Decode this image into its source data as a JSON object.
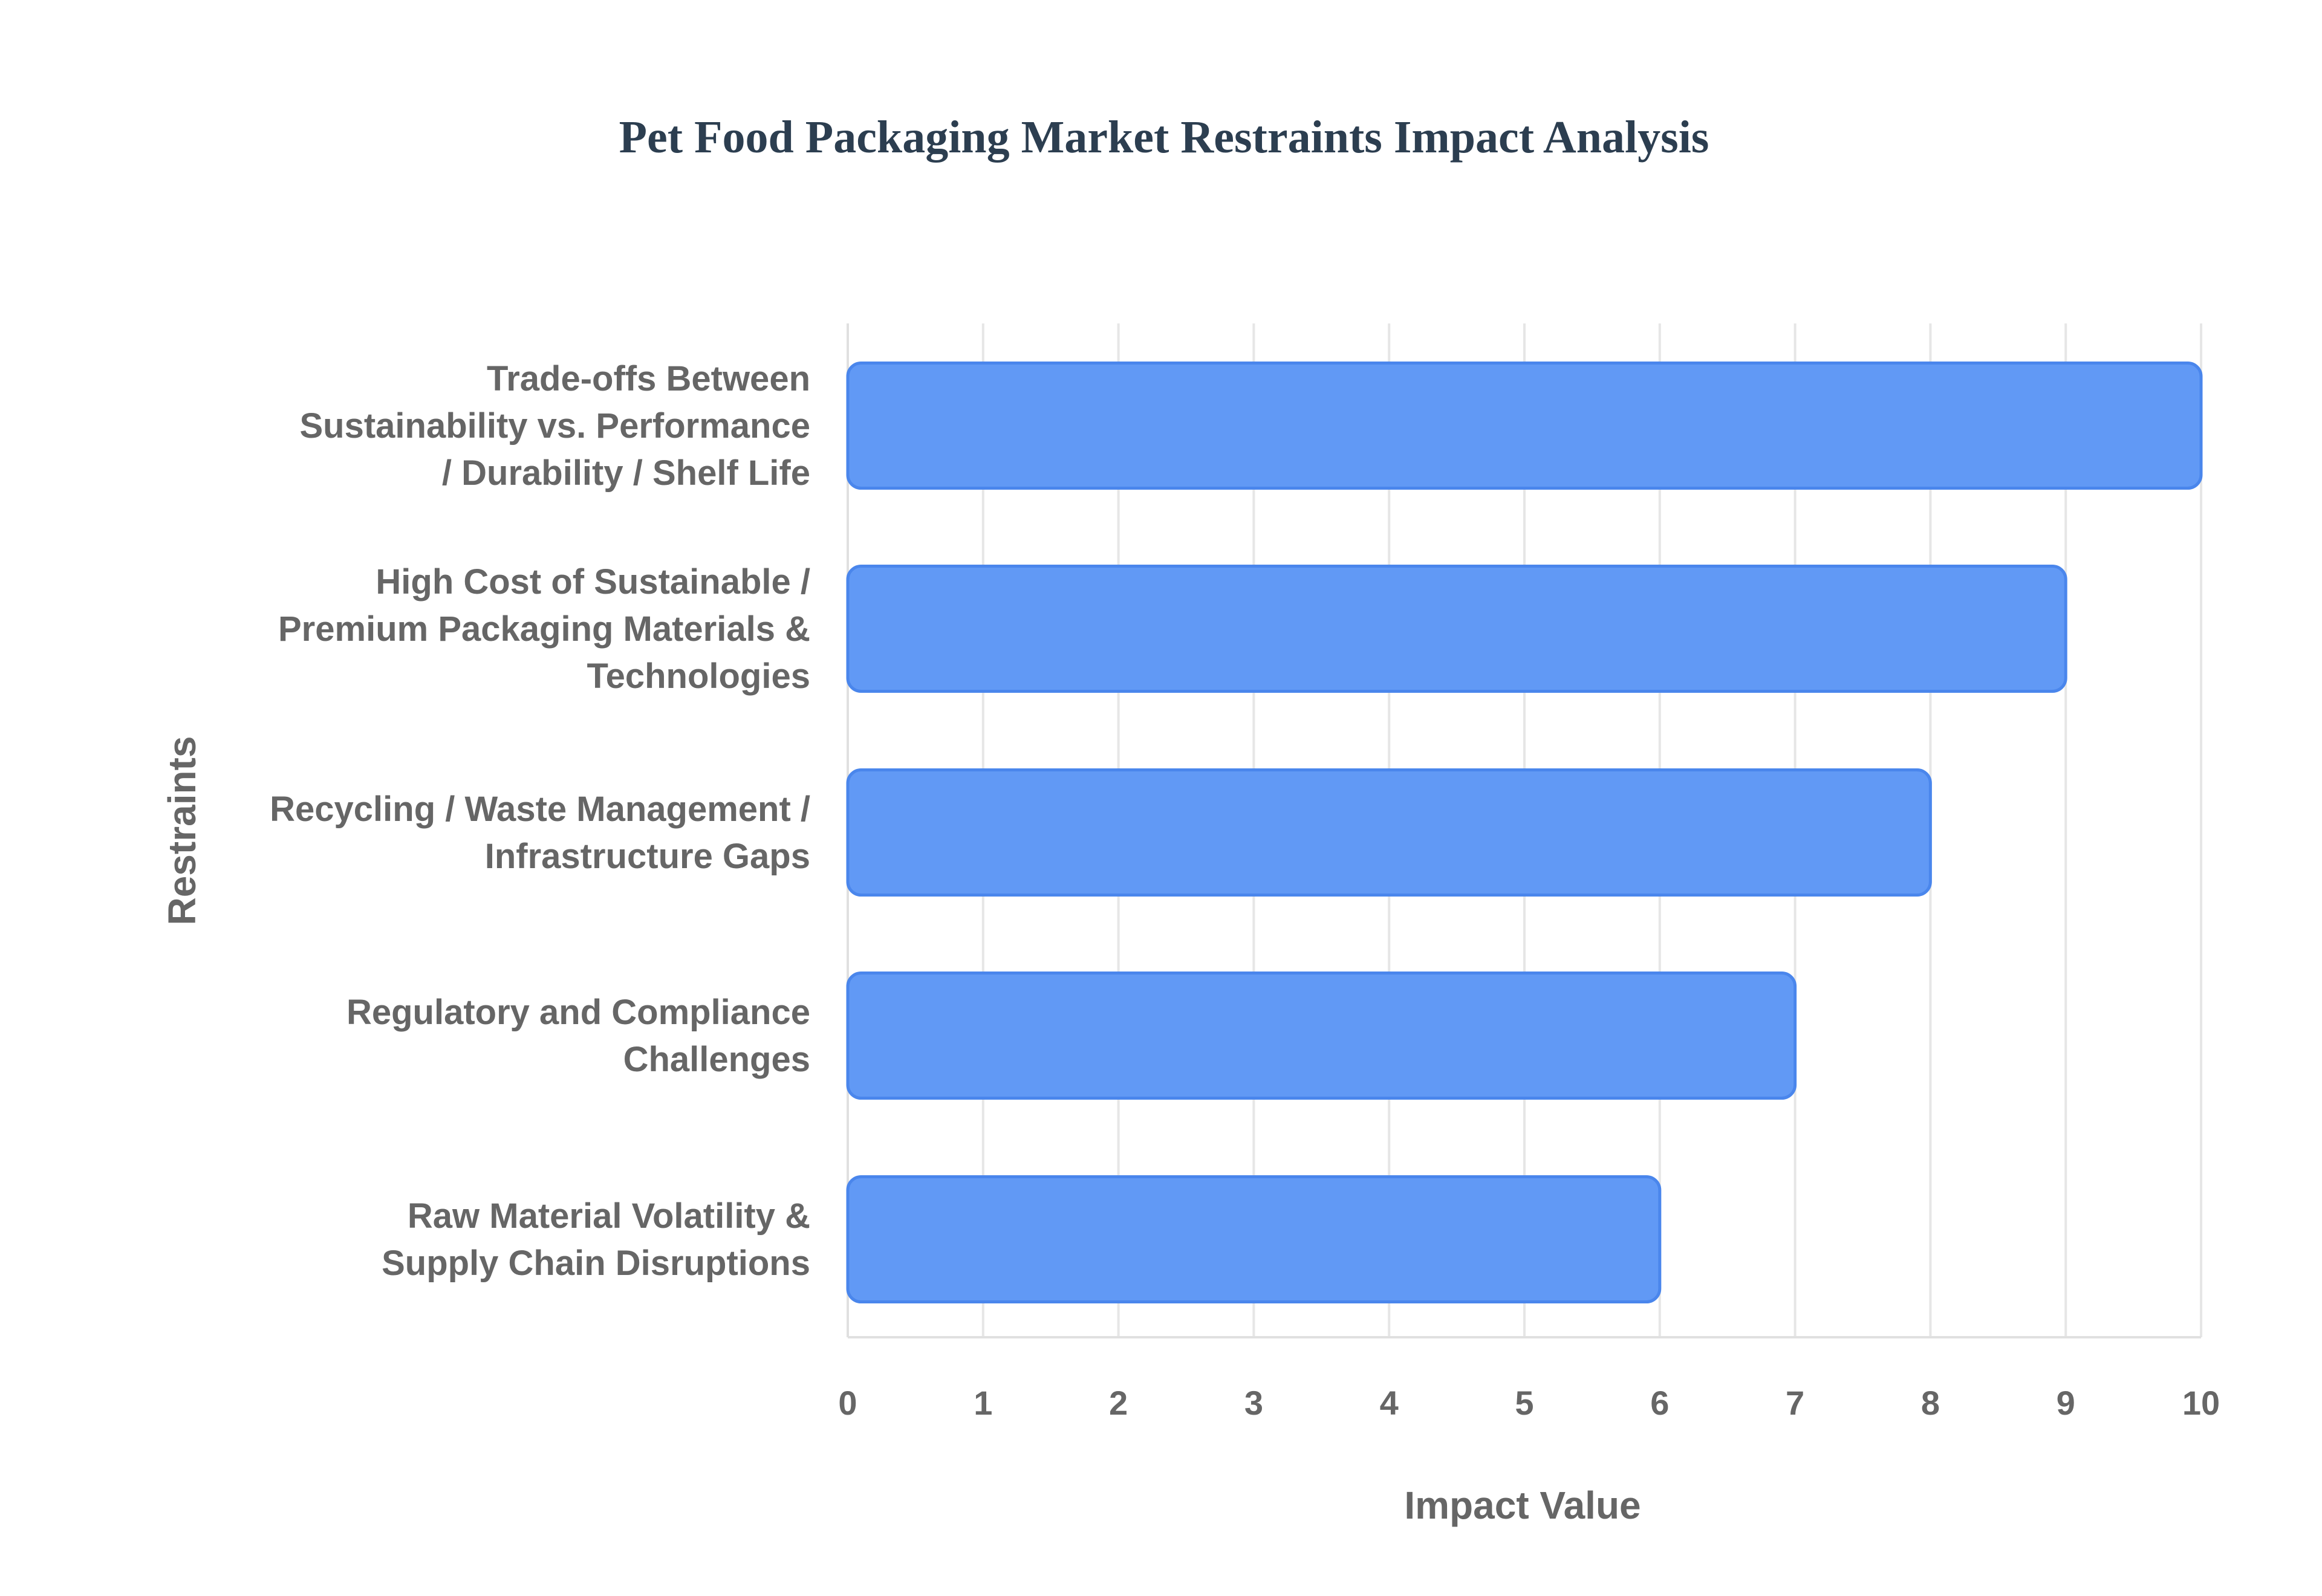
{
  "chart_data": {
    "type": "bar",
    "orientation": "horizontal",
    "title": "Pet Food Packaging Market Restraints Impact Analysis",
    "xlabel": "Impact Value",
    "ylabel": "Restraints",
    "xlim": [
      0,
      10
    ],
    "x_ticks": [
      "0",
      "1",
      "2",
      "3",
      "4",
      "5",
      "6",
      "7",
      "8",
      "9",
      "10"
    ],
    "grid": true,
    "categories": [
      [
        "Trade-offs Between",
        "Sustainability vs. Performance",
        "/ Durability / Shelf Life"
      ],
      [
        "High Cost of Sustainable /",
        "Premium Packaging Materials &",
        "Technologies"
      ],
      [
        "Recycling / Waste Management /",
        "Infrastructure Gaps"
      ],
      [
        "Regulatory and Compliance",
        "Challenges"
      ],
      [
        "Raw Material Volatility &",
        "Supply Chain Disruptions"
      ]
    ],
    "values": [
      10,
      9,
      8,
      7,
      6
    ],
    "colors": {
      "bar_fill": "#6199f5",
      "bar_stroke": "#4a86ec",
      "title": "#2c3e50",
      "text": "#666666",
      "grid": "#e6e6e6"
    }
  }
}
